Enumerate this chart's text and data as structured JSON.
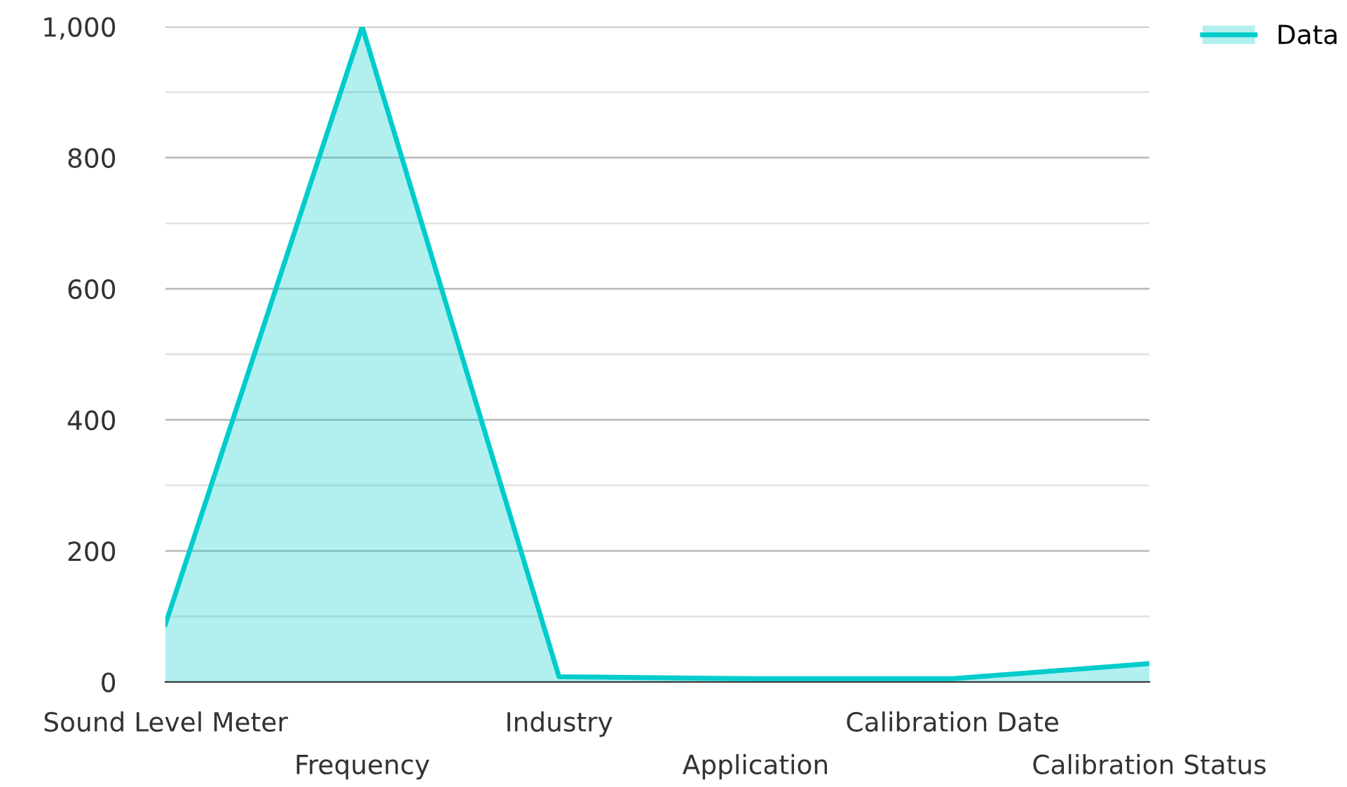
{
  "chart_data": {
    "type": "area",
    "categories": [
      "Sound Level Meter",
      "Frequency",
      "Industry",
      "Application",
      "Calibration Date",
      "Calibration Status"
    ],
    "series": [
      {
        "name": "Data",
        "color": "#00cccc",
        "values": [
          88,
          1000,
          8,
          5,
          5,
          28
        ]
      }
    ],
    "ylim": [
      0,
      1000
    ],
    "yticks": [
      0,
      {
        "value": 100,
        "label": null
      },
      200,
      {
        "value": 300,
        "label": null
      },
      400,
      {
        "value": 500,
        "label": null
      },
      600,
      {
        "value": 700,
        "label": null
      },
      800,
      {
        "value": 900,
        "label": null
      },
      {
        "value": 1000,
        "label": "1,000"
      }
    ],
    "grid": "y",
    "legend": "top right",
    "marker": "none",
    "line_style": "solid"
  }
}
